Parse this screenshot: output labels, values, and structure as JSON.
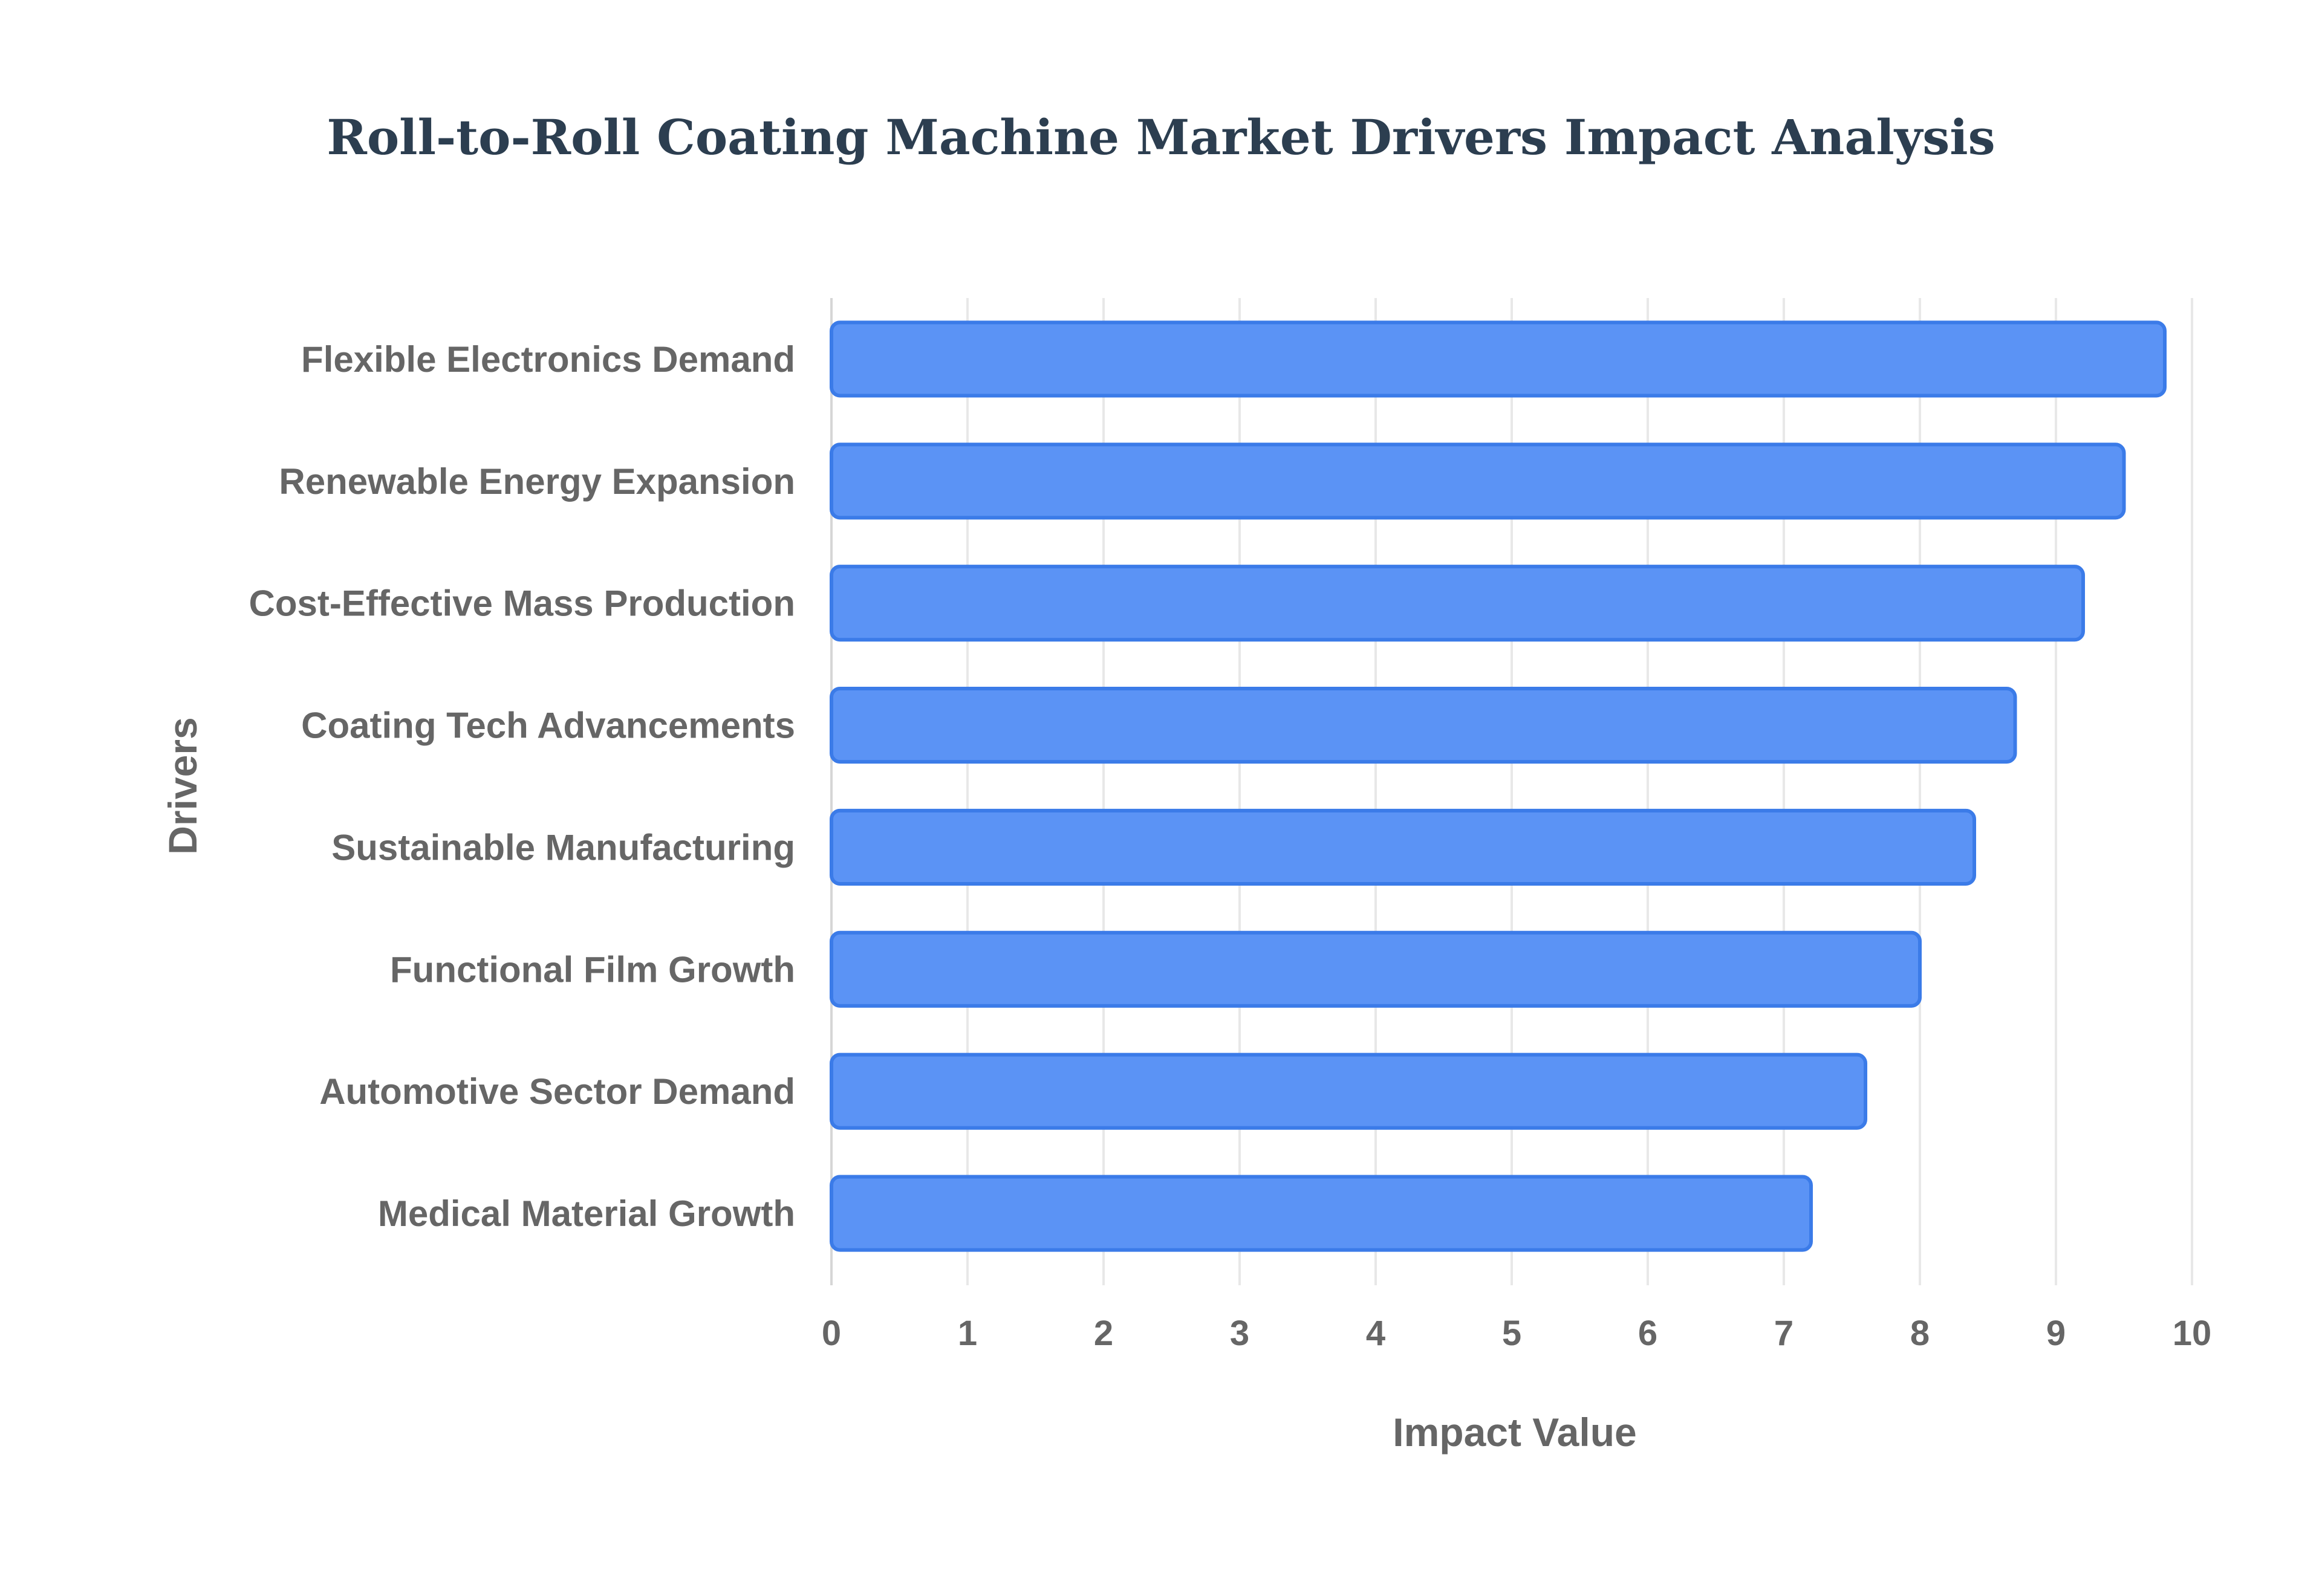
{
  "chart_data": {
    "type": "bar",
    "orientation": "horizontal",
    "title": "Roll-to-Roll Coating Machine Market Drivers Impact Analysis",
    "xlabel": "Impact Value",
    "ylabel": "Drivers",
    "categories": [
      "Flexible Electronics Demand",
      "Renewable Energy Expansion",
      "Cost-Effective Mass Production",
      "Coating Tech Advancements",
      "Sustainable Manufacturing",
      "Functional Film Growth",
      "Automotive Sector Demand",
      "Medical Material Growth"
    ],
    "values": [
      9.8,
      9.5,
      9.2,
      8.7,
      8.4,
      8.0,
      7.6,
      7.2
    ],
    "xlim": [
      0,
      10
    ],
    "xticks": [
      "0",
      "1",
      "2",
      "3",
      "4",
      "5",
      "6",
      "7",
      "8",
      "9",
      "10"
    ],
    "grid": true,
    "legend": "none",
    "colors": {
      "bar_fill": "#5b93f5",
      "bar_stroke": "#3b7be8",
      "title": "#2c3e50",
      "text": "#666666",
      "grid": "#e8e8e8"
    }
  }
}
